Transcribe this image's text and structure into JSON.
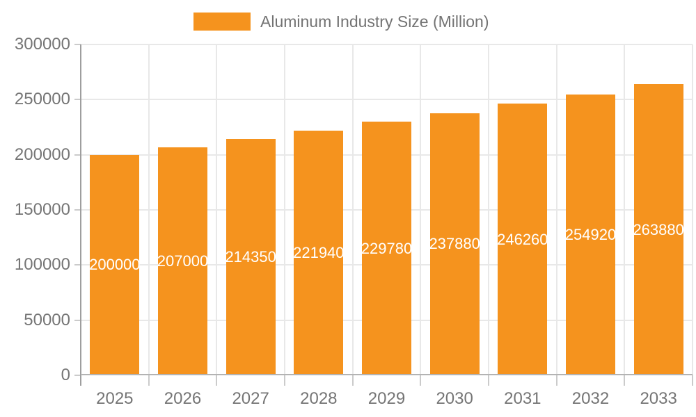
{
  "legend": {
    "label": "Aluminum Industry Size (Million)"
  },
  "chart_data": {
    "type": "bar",
    "title": "Aluminum Industry Size (Million)",
    "xlabel": "",
    "ylabel": "",
    "categories": [
      "2025",
      "2026",
      "2027",
      "2028",
      "2029",
      "2030",
      "2031",
      "2032",
      "2033"
    ],
    "series": [
      {
        "name": "Aluminum Industry Size (Million)",
        "color": "#F5931E",
        "values": [
          200000,
          207000,
          214350,
          221940,
          229780,
          237880,
          246260,
          254920,
          263880
        ]
      }
    ],
    "bar_value_labels": [
      "200000",
      "207000",
      "214350",
      "221940",
      "229780",
      "237880",
      "246260",
      "254920",
      "263880"
    ],
    "bar_label_position": "inside-center",
    "ylim": [
      0,
      300000
    ],
    "yticks": [
      0,
      50000,
      100000,
      150000,
      200000,
      250000,
      300000
    ],
    "ytick_labels": [
      "0",
      "50000",
      "100000",
      "150000",
      "200000",
      "250000",
      "300000"
    ],
    "grid": true,
    "legend_position": "top",
    "colors": {
      "bar": "#F5931E",
      "bar_label_text": "#ffffff",
      "axis_tick_text": "#757575",
      "legend_text": "#737373",
      "gridline": "#e8e8e8",
      "y_axis_line": "#9e9e9e",
      "x_axis_line": "#b3b3b3",
      "tick_mark": "#cbcbcb",
      "background": "#ffffff"
    }
  }
}
